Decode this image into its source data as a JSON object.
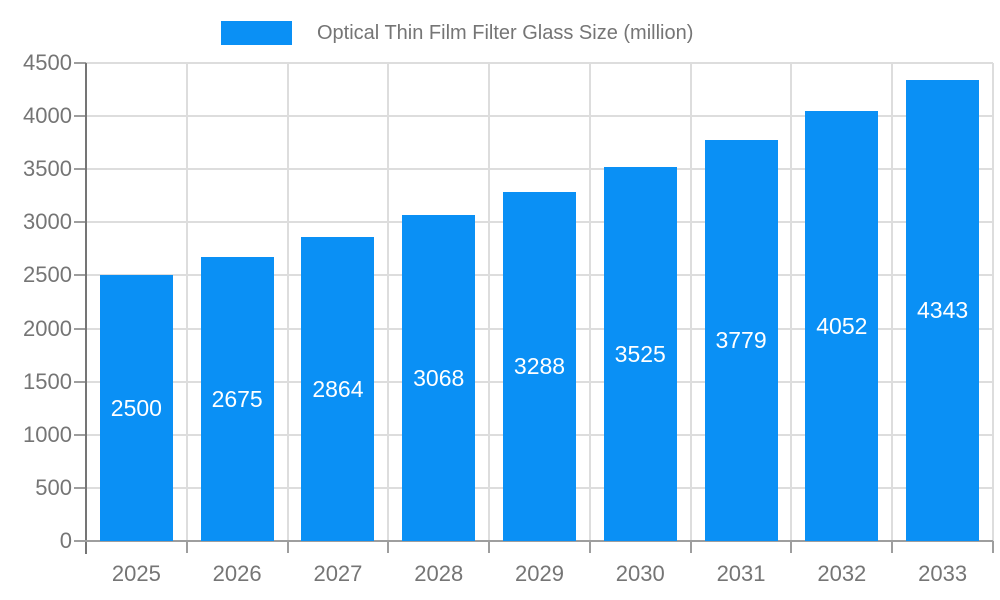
{
  "chart_data": {
    "type": "bar",
    "title": "",
    "legend": "Optical Thin Film Filter Glass Size (million)",
    "legend_position": "top",
    "categories": [
      "2025",
      "2026",
      "2027",
      "2028",
      "2029",
      "2030",
      "2031",
      "2032",
      "2033"
    ],
    "values": [
      2500,
      2675,
      2864,
      3068,
      3288,
      3525,
      3779,
      4052,
      4343
    ],
    "bar_labels": [
      "2500",
      "2675",
      "2864",
      "3068",
      "3288",
      "3525",
      "3779",
      "4052",
      "4343"
    ],
    "xlabel": "",
    "ylabel": "",
    "ylim": [
      0,
      4500
    ],
    "ytick_step": 500,
    "ytick_labels": [
      "0",
      "500",
      "1000",
      "1500",
      "2000",
      "2500",
      "3000",
      "3500",
      "4000",
      "4500"
    ],
    "grid": true,
    "colors": {
      "bar": "#0A90F5",
      "bar_label_text": "#FFFFFF",
      "axis_text": "#757575",
      "legend_text": "#757575",
      "gridline": "#DDDDDD",
      "axis_line": "#9E9E9E",
      "y_axis_line": "#757575",
      "background": "#FFFFFF"
    }
  }
}
